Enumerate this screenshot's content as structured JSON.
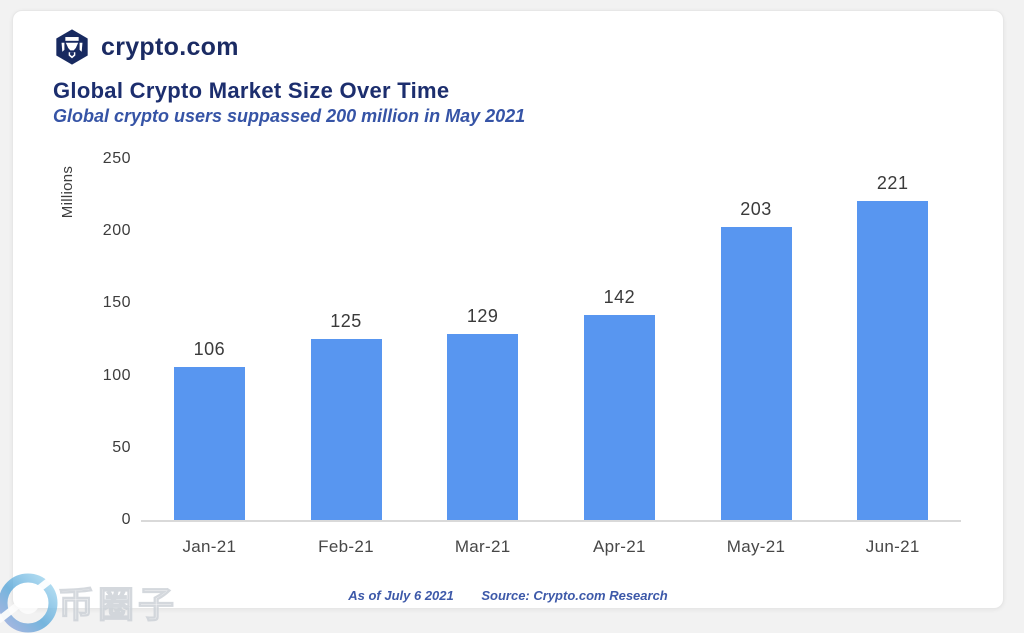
{
  "page": {
    "brand": {
      "name": "crypto.com"
    },
    "title": "Global Crypto Market Size Over Time",
    "subtitle": "Global crypto users suppassed 200 million in May 2021",
    "footer": {
      "as_of": "As of July 6 2021",
      "source": "Source: Crypto.com Research"
    },
    "watermark_text": "币圈子"
  },
  "colors": {
    "brand_navy": "#1b2b63",
    "title_navy": "#1c2e6e",
    "subtitle_blue": "#3654a6",
    "footer_blue": "#3d59a9",
    "bar_blue": "#5896F0",
    "axis_line": "#d9d9d9",
    "card_bg": "#ffffff",
    "page_bg": "#f2f2f2"
  },
  "chart_data": {
    "type": "bar",
    "categories": [
      "Jan-21",
      "Feb-21",
      "Mar-21",
      "Apr-21",
      "May-21",
      "Jun-21"
    ],
    "values": [
      106,
      125,
      129,
      142,
      203,
      221
    ],
    "title": "Global Crypto Market Size Over Time",
    "subtitle": "Global crypto users suppassed 200 million in May 2021",
    "xlabel": "",
    "ylabel": "Millions",
    "ylim": [
      0,
      250
    ],
    "yticks": [
      250,
      200,
      150,
      100,
      50,
      0
    ],
    "grid": false,
    "legend": "none",
    "data_labels": true,
    "bar_color": "#5896F0"
  }
}
